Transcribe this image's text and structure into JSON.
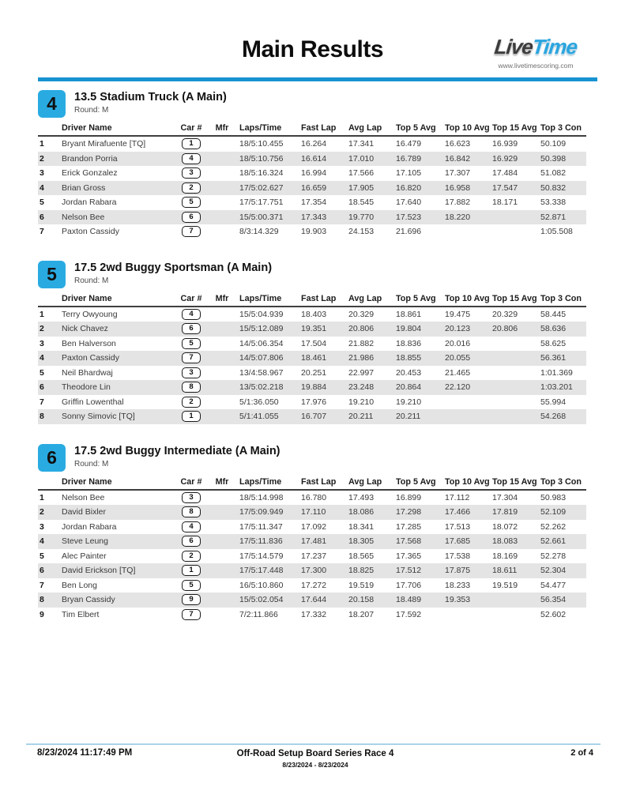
{
  "page": {
    "title": "Main Results",
    "logo": {
      "live": "Live",
      "time": "Time",
      "url": "www.livetimescoring.com"
    }
  },
  "columns": [
    "Driver Name",
    "Car #",
    "Mfr",
    "Laps/Time",
    "Fast Lap",
    "Avg Lap",
    "Top 5 Avg",
    "Top 10 Avg",
    "Top 15 Avg",
    "Top 3 Con"
  ],
  "races": [
    {
      "number": "4",
      "title": "13.5 Stadium Truck (A Main)",
      "round": "Round: M",
      "rows": [
        {
          "pos": "1",
          "driver": "Bryant Mirafuente [TQ]",
          "car": "1",
          "mfr": "",
          "laps_time": "18/5:10.455",
          "fast": "16.264",
          "avg": "17.341",
          "top5": "16.479",
          "top10": "16.623",
          "top15": "16.939",
          "top3con": "50.109"
        },
        {
          "pos": "2",
          "driver": "Brandon Porria",
          "car": "4",
          "mfr": "",
          "laps_time": "18/5:10.756",
          "fast": "16.614",
          "avg": "17.010",
          "top5": "16.789",
          "top10": "16.842",
          "top15": "16.929",
          "top3con": "50.398"
        },
        {
          "pos": "3",
          "driver": "Erick Gonzalez",
          "car": "3",
          "mfr": "",
          "laps_time": "18/5:16.324",
          "fast": "16.994",
          "avg": "17.566",
          "top5": "17.105",
          "top10": "17.307",
          "top15": "17.484",
          "top3con": "51.082"
        },
        {
          "pos": "4",
          "driver": "Brian Gross",
          "car": "2",
          "mfr": "",
          "laps_time": "17/5:02.627",
          "fast": "16.659",
          "avg": "17.905",
          "top5": "16.820",
          "top10": "16.958",
          "top15": "17.547",
          "top3con": "50.832"
        },
        {
          "pos": "5",
          "driver": "Jordan Rabara",
          "car": "5",
          "mfr": "",
          "laps_time": "17/5:17.751",
          "fast": "17.354",
          "avg": "18.545",
          "top5": "17.640",
          "top10": "17.882",
          "top15": "18.171",
          "top3con": "53.338"
        },
        {
          "pos": "6",
          "driver": "Nelson Bee",
          "car": "6",
          "mfr": "",
          "laps_time": "15/5:00.371",
          "fast": "17.343",
          "avg": "19.770",
          "top5": "17.523",
          "top10": "18.220",
          "top15": "",
          "top3con": "52.871"
        },
        {
          "pos": "7",
          "driver": "Paxton Cassidy",
          "car": "7",
          "mfr": "",
          "laps_time": "8/3:14.329",
          "fast": "19.903",
          "avg": "24.153",
          "top5": "21.696",
          "top10": "",
          "top15": "",
          "top3con": "1:05.508"
        }
      ]
    },
    {
      "number": "5",
      "title": "17.5 2wd Buggy Sportsman (A Main)",
      "round": "Round: M",
      "rows": [
        {
          "pos": "1",
          "driver": "Terry Owyoung",
          "car": "4",
          "mfr": "",
          "laps_time": "15/5:04.939",
          "fast": "18.403",
          "avg": "20.329",
          "top5": "18.861",
          "top10": "19.475",
          "top15": "20.329",
          "top3con": "58.445"
        },
        {
          "pos": "2",
          "driver": "Nick Chavez",
          "car": "6",
          "mfr": "",
          "laps_time": "15/5:12.089",
          "fast": "19.351",
          "avg": "20.806",
          "top5": "19.804",
          "top10": "20.123",
          "top15": "20.806",
          "top3con": "58.636"
        },
        {
          "pos": "3",
          "driver": "Ben Halverson",
          "car": "5",
          "mfr": "",
          "laps_time": "14/5:06.354",
          "fast": "17.504",
          "avg": "21.882",
          "top5": "18.836",
          "top10": "20.016",
          "top15": "",
          "top3con": "58.625"
        },
        {
          "pos": "4",
          "driver": "Paxton Cassidy",
          "car": "7",
          "mfr": "",
          "laps_time": "14/5:07.806",
          "fast": "18.461",
          "avg": "21.986",
          "top5": "18.855",
          "top10": "20.055",
          "top15": "",
          "top3con": "56.361"
        },
        {
          "pos": "5",
          "driver": "Neil Bhardwaj",
          "car": "3",
          "mfr": "",
          "laps_time": "13/4:58.967",
          "fast": "20.251",
          "avg": "22.997",
          "top5": "20.453",
          "top10": "21.465",
          "top15": "",
          "top3con": "1:01.369"
        },
        {
          "pos": "6",
          "driver": "Theodore Lin",
          "car": "8",
          "mfr": "",
          "laps_time": "13/5:02.218",
          "fast": "19.884",
          "avg": "23.248",
          "top5": "20.864",
          "top10": "22.120",
          "top15": "",
          "top3con": "1:03.201"
        },
        {
          "pos": "7",
          "driver": "Griffin Lowenthal",
          "car": "2",
          "mfr": "",
          "laps_time": "5/1:36.050",
          "fast": "17.976",
          "avg": "19.210",
          "top5": "19.210",
          "top10": "",
          "top15": "",
          "top3con": "55.994"
        },
        {
          "pos": "8",
          "driver": "Sonny Simovic [TQ]",
          "car": "1",
          "mfr": "",
          "laps_time": "5/1:41.055",
          "fast": "16.707",
          "avg": "20.211",
          "top5": "20.211",
          "top10": "",
          "top15": "",
          "top3con": "54.268"
        }
      ]
    },
    {
      "number": "6",
      "title": "17.5 2wd Buggy Intermediate (A Main)",
      "round": "Round: M",
      "rows": [
        {
          "pos": "1",
          "driver": "Nelson Bee",
          "car": "3",
          "mfr": "",
          "laps_time": "18/5:14.998",
          "fast": "16.780",
          "avg": "17.493",
          "top5": "16.899",
          "top10": "17.112",
          "top15": "17.304",
          "top3con": "50.983"
        },
        {
          "pos": "2",
          "driver": "David Bixler",
          "car": "8",
          "mfr": "",
          "laps_time": "17/5:09.949",
          "fast": "17.110",
          "avg": "18.086",
          "top5": "17.298",
          "top10": "17.466",
          "top15": "17.819",
          "top3con": "52.109"
        },
        {
          "pos": "3",
          "driver": "Jordan Rabara",
          "car": "4",
          "mfr": "",
          "laps_time": "17/5:11.347",
          "fast": "17.092",
          "avg": "18.341",
          "top5": "17.285",
          "top10": "17.513",
          "top15": "18.072",
          "top3con": "52.262"
        },
        {
          "pos": "4",
          "driver": "Steve Leung",
          "car": "6",
          "mfr": "",
          "laps_time": "17/5:11.836",
          "fast": "17.481",
          "avg": "18.305",
          "top5": "17.568",
          "top10": "17.685",
          "top15": "18.083",
          "top3con": "52.661"
        },
        {
          "pos": "5",
          "driver": "Alec Painter",
          "car": "2",
          "mfr": "",
          "laps_time": "17/5:14.579",
          "fast": "17.237",
          "avg": "18.565",
          "top5": "17.365",
          "top10": "17.538",
          "top15": "18.169",
          "top3con": "52.278"
        },
        {
          "pos": "6",
          "driver": "David Erickson [TQ]",
          "car": "1",
          "mfr": "",
          "laps_time": "17/5:17.448",
          "fast": "17.300",
          "avg": "18.825",
          "top5": "17.512",
          "top10": "17.875",
          "top15": "18.611",
          "top3con": "52.304"
        },
        {
          "pos": "7",
          "driver": "Ben Long",
          "car": "5",
          "mfr": "",
          "laps_time": "16/5:10.860",
          "fast": "17.272",
          "avg": "19.519",
          "top5": "17.706",
          "top10": "18.233",
          "top15": "19.519",
          "top3con": "54.477"
        },
        {
          "pos": "8",
          "driver": "Bryan Cassidy",
          "car": "9",
          "mfr": "",
          "laps_time": "15/5:02.054",
          "fast": "17.644",
          "avg": "20.158",
          "top5": "18.489",
          "top10": "19.353",
          "top15": "",
          "top3con": "56.354"
        },
        {
          "pos": "9",
          "driver": "Tim Elbert",
          "car": "7",
          "mfr": "",
          "laps_time": "7/2:11.866",
          "fast": "17.332",
          "avg": "18.207",
          "top5": "17.592",
          "top10": "",
          "top15": "",
          "top3con": "52.602"
        }
      ]
    }
  ],
  "footer": {
    "timestamp": "8/23/2024 11:17:49 PM",
    "series": "Off-Road Setup Board Series Race 4",
    "dates": "8/23/2024 - 8/23/2024",
    "page": "2 of 4"
  },
  "colors": {
    "accent_blue": "#1793D1",
    "badge_blue": "#29ABE2",
    "logo_blue": "#2AA5DF",
    "stripe_gray": "#E4E4E4",
    "header_line": "#3F3F3F",
    "footer_line": "#A9D3E8"
  }
}
